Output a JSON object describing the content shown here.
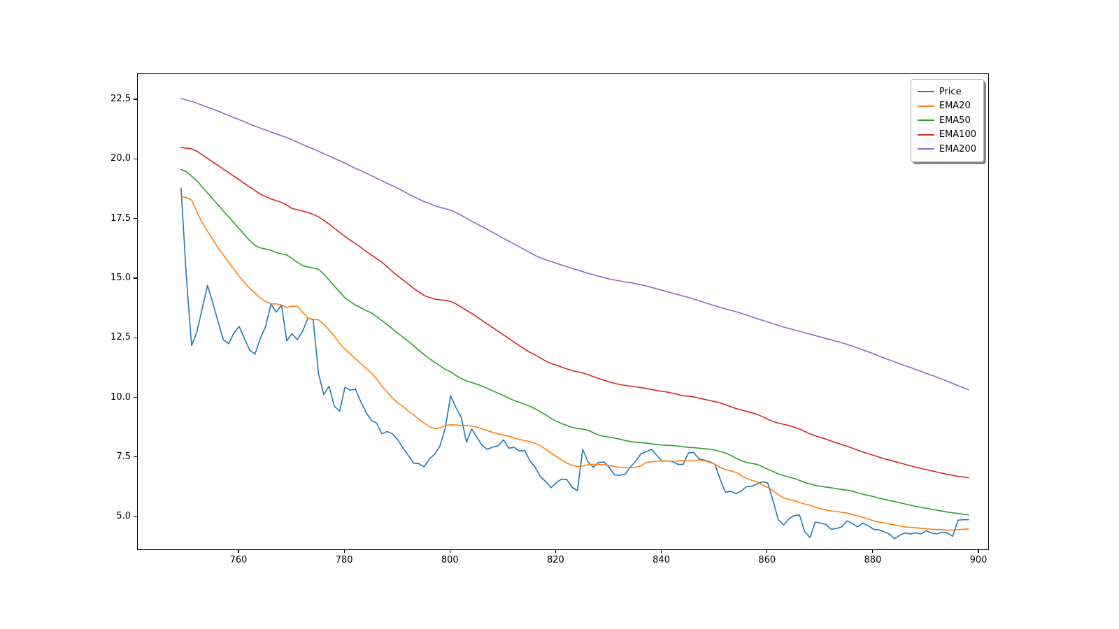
{
  "figure": {
    "background": "#ffffff"
  },
  "chart_data": {
    "type": "line",
    "title": "",
    "xlabel": "",
    "ylabel": "",
    "grid": false,
    "legend_position": "upper right",
    "x_range": [
      740.81,
      901.72
    ],
    "y_range": [
      3.658,
      23.584
    ],
    "x_ticks": [
      {
        "value": 760,
        "label": "760"
      },
      {
        "value": 780,
        "label": "780"
      },
      {
        "value": 800,
        "label": "800"
      },
      {
        "value": 820,
        "label": "820"
      },
      {
        "value": 840,
        "label": "840"
      },
      {
        "value": 860,
        "label": "860"
      },
      {
        "value": 880,
        "label": "880"
      },
      {
        "value": 900,
        "label": "900"
      }
    ],
    "y_ticks": [
      {
        "value": 5.0,
        "label": "5.0"
      },
      {
        "value": 7.5,
        "label": "7.5"
      },
      {
        "value": 10.0,
        "label": "10.0"
      },
      {
        "value": 12.5,
        "label": "12.5"
      },
      {
        "value": 15.0,
        "label": "15.0"
      },
      {
        "value": 17.5,
        "label": "17.5"
      },
      {
        "value": 20.0,
        "label": "20.0"
      },
      {
        "value": 22.5,
        "label": "22.5"
      }
    ],
    "x": [
      749,
      750,
      751,
      752,
      753,
      754,
      755,
      756,
      757,
      758,
      759,
      760,
      761,
      762,
      763,
      764,
      765,
      766,
      767,
      768,
      769,
      770,
      771,
      772,
      773,
      774,
      775,
      776,
      777,
      778,
      779,
      780,
      781,
      782,
      783,
      784,
      785,
      786,
      787,
      788,
      789,
      790,
      791,
      792,
      793,
      794,
      795,
      796,
      797,
      798,
      799,
      800,
      801,
      802,
      803,
      804,
      805,
      806,
      807,
      808,
      809,
      810,
      811,
      812,
      813,
      814,
      815,
      816,
      817,
      818,
      819,
      820,
      821,
      822,
      823,
      824,
      825,
      826,
      827,
      828,
      829,
      830,
      831,
      832,
      833,
      834,
      835,
      836,
      837,
      838,
      839,
      840,
      841,
      842,
      843,
      844,
      845,
      846,
      847,
      848,
      849,
      850,
      851,
      852,
      853,
      854,
      855,
      856,
      857,
      858,
      859,
      860,
      861,
      862,
      863,
      864,
      865,
      866,
      867,
      868,
      869,
      870,
      871,
      872,
      873,
      874,
      875,
      876,
      877,
      878,
      879,
      880,
      881,
      882,
      883,
      884,
      885,
      886,
      887,
      888,
      889,
      890,
      891,
      892,
      893,
      894,
      895,
      896,
      897,
      898
    ],
    "series": [
      {
        "name": "Price",
        "color": "#1f77b4",
        "values": [
          18.8,
          15.1,
          12.2,
          12.78,
          13.75,
          14.72,
          14.0,
          13.2,
          12.45,
          12.28,
          12.73,
          13.0,
          12.5,
          12.0,
          11.85,
          12.5,
          13.0,
          13.95,
          13.6,
          13.9,
          12.4,
          12.7,
          12.45,
          12.8,
          13.35,
          13.28,
          11.03,
          10.15,
          10.49,
          9.66,
          9.45,
          10.45,
          10.33,
          10.37,
          9.85,
          9.4,
          9.07,
          8.95,
          8.5,
          8.6,
          8.5,
          8.25,
          7.9,
          7.6,
          7.27,
          7.25,
          7.12,
          7.45,
          7.65,
          8.0,
          8.75,
          10.1,
          9.6,
          9.2,
          8.15,
          8.7,
          8.35,
          8.0,
          7.85,
          7.95,
          8.0,
          8.25,
          7.9,
          7.93,
          7.78,
          7.8,
          7.37,
          7.1,
          6.7,
          6.5,
          6.24,
          6.45,
          6.6,
          6.58,
          6.25,
          6.12,
          7.85,
          7.32,
          7.1,
          7.3,
          7.32,
          7.1,
          6.78,
          6.76,
          6.8,
          7.1,
          7.35,
          7.66,
          7.75,
          7.85,
          7.6,
          7.35,
          7.37,
          7.33,
          7.22,
          7.22,
          7.7,
          7.72,
          7.45,
          7.4,
          7.33,
          7.22,
          6.6,
          6.05,
          6.1,
          6.0,
          6.1,
          6.29,
          6.3,
          6.4,
          6.49,
          6.44,
          5.7,
          4.9,
          4.68,
          4.93,
          5.07,
          5.1,
          4.4,
          4.15,
          4.8,
          4.75,
          4.7,
          4.5,
          4.53,
          4.6,
          4.85,
          4.75,
          4.6,
          4.75,
          4.65,
          4.5,
          4.48,
          4.4,
          4.3,
          4.1,
          4.25,
          4.35,
          4.3,
          4.35,
          4.3,
          4.44,
          4.34,
          4.3,
          4.38,
          4.34,
          4.2,
          4.88,
          4.9,
          4.9
        ]
      },
      {
        "name": "EMA20",
        "color": "#ff7f0e",
        "values": [
          18.45,
          18.4,
          18.3,
          17.8,
          17.35,
          17.0,
          16.65,
          16.3,
          16.0,
          15.7,
          15.4,
          15.1,
          14.85,
          14.6,
          14.4,
          14.2,
          14.05,
          13.95,
          13.95,
          13.9,
          13.8,
          13.85,
          13.85,
          13.6,
          13.35,
          13.3,
          13.28,
          13.1,
          12.85,
          12.6,
          12.3,
          12.05,
          11.85,
          11.65,
          11.45,
          11.25,
          11.05,
          10.8,
          10.5,
          10.25,
          10.0,
          9.8,
          9.65,
          9.45,
          9.3,
          9.1,
          8.95,
          8.8,
          8.72,
          8.75,
          8.85,
          8.88,
          8.87,
          8.85,
          8.84,
          8.83,
          8.78,
          8.7,
          8.63,
          8.56,
          8.5,
          8.45,
          8.4,
          8.33,
          8.27,
          8.22,
          8.17,
          8.1,
          8.0,
          7.85,
          7.7,
          7.55,
          7.4,
          7.28,
          7.18,
          7.13,
          7.15,
          7.2,
          7.22,
          7.22,
          7.2,
          7.17,
          7.13,
          7.09,
          7.08,
          7.09,
          7.1,
          7.15,
          7.3,
          7.33,
          7.35,
          7.37,
          7.36,
          7.35,
          7.36,
          7.37,
          7.37,
          7.38,
          7.4,
          7.38,
          7.3,
          7.22,
          7.1,
          7.0,
          6.95,
          6.88,
          6.75,
          6.63,
          6.55,
          6.49,
          6.35,
          6.25,
          6.12,
          5.95,
          5.82,
          5.75,
          5.7,
          5.62,
          5.56,
          5.5,
          5.42,
          5.36,
          5.31,
          5.27,
          5.24,
          5.21,
          5.18,
          5.12,
          5.06,
          5.0,
          4.93,
          4.85,
          4.8,
          4.76,
          4.72,
          4.68,
          4.64,
          4.6,
          4.58,
          4.56,
          4.54,
          4.52,
          4.5,
          4.49,
          4.48,
          4.47,
          4.47,
          4.48,
          4.5,
          4.52
        ]
      },
      {
        "name": "EMA50",
        "color": "#2ca02c",
        "values": [
          19.58,
          19.5,
          19.3,
          19.1,
          18.85,
          18.6,
          18.35,
          18.1,
          17.85,
          17.6,
          17.35,
          17.1,
          16.85,
          16.6,
          16.4,
          16.3,
          16.25,
          16.2,
          16.1,
          16.05,
          16.0,
          15.85,
          15.7,
          15.55,
          15.5,
          15.45,
          15.4,
          15.2,
          14.95,
          14.7,
          14.45,
          14.2,
          14.05,
          13.9,
          13.78,
          13.67,
          13.57,
          13.42,
          13.25,
          13.08,
          12.9,
          12.72,
          12.55,
          12.38,
          12.2,
          12.0,
          11.82,
          11.65,
          11.5,
          11.35,
          11.2,
          11.1,
          10.95,
          10.82,
          10.72,
          10.65,
          10.58,
          10.5,
          10.4,
          10.3,
          10.2,
          10.1,
          10.0,
          9.9,
          9.82,
          9.74,
          9.66,
          9.55,
          9.42,
          9.3,
          9.15,
          9.03,
          8.93,
          8.85,
          8.77,
          8.73,
          8.7,
          8.65,
          8.55,
          8.45,
          8.4,
          8.36,
          8.32,
          8.28,
          8.22,
          8.18,
          8.15,
          8.13,
          8.11,
          8.08,
          8.05,
          8.03,
          8.02,
          8.01,
          7.99,
          7.96,
          7.93,
          7.92,
          7.9,
          7.88,
          7.85,
          7.82,
          7.76,
          7.7,
          7.6,
          7.48,
          7.38,
          7.3,
          7.26,
          7.22,
          7.12,
          7.02,
          6.92,
          6.82,
          6.75,
          6.69,
          6.63,
          6.55,
          6.46,
          6.4,
          6.34,
          6.3,
          6.27,
          6.24,
          6.2,
          6.17,
          6.14,
          6.1,
          6.03,
          5.97,
          5.92,
          5.87,
          5.81,
          5.76,
          5.71,
          5.66,
          5.61,
          5.56,
          5.51,
          5.46,
          5.42,
          5.38,
          5.34,
          5.3,
          5.26,
          5.22,
          5.19,
          5.16,
          5.13,
          5.1
        ]
      },
      {
        "name": "EMA100",
        "color": "#d62728",
        "values": [
          20.5,
          20.48,
          20.45,
          20.35,
          20.2,
          20.05,
          19.9,
          19.75,
          19.6,
          19.45,
          19.3,
          19.15,
          19.0,
          18.85,
          18.7,
          18.55,
          18.45,
          18.35,
          18.28,
          18.2,
          18.1,
          17.95,
          17.9,
          17.85,
          17.78,
          17.7,
          17.6,
          17.45,
          17.3,
          17.12,
          16.95,
          16.78,
          16.62,
          16.48,
          16.32,
          16.15,
          16.0,
          15.85,
          15.7,
          15.5,
          15.3,
          15.12,
          14.95,
          14.78,
          14.6,
          14.45,
          14.3,
          14.22,
          14.15,
          14.12,
          14.1,
          14.05,
          13.95,
          13.82,
          13.68,
          13.55,
          13.4,
          13.25,
          13.1,
          12.95,
          12.8,
          12.65,
          12.5,
          12.35,
          12.2,
          12.05,
          11.92,
          11.8,
          11.68,
          11.55,
          11.45,
          11.38,
          11.3,
          11.22,
          11.15,
          11.1,
          11.05,
          10.98,
          10.9,
          10.82,
          10.75,
          10.68,
          10.62,
          10.57,
          10.53,
          10.5,
          10.47,
          10.44,
          10.4,
          10.36,
          10.32,
          10.28,
          10.25,
          10.2,
          10.15,
          10.1,
          10.08,
          10.05,
          10.0,
          9.95,
          9.9,
          9.85,
          9.8,
          9.72,
          9.64,
          9.56,
          9.5,
          9.44,
          9.38,
          9.32,
          9.22,
          9.12,
          9.02,
          8.95,
          8.9,
          8.85,
          8.78,
          8.7,
          8.6,
          8.5,
          8.42,
          8.35,
          8.28,
          8.2,
          8.12,
          8.05,
          7.98,
          7.9,
          7.82,
          7.74,
          7.67,
          7.6,
          7.53,
          7.46,
          7.4,
          7.34,
          7.28,
          7.22,
          7.16,
          7.1,
          7.05,
          7.0,
          6.95,
          6.9,
          6.85,
          6.8,
          6.76,
          6.72,
          6.69,
          6.66
        ]
      },
      {
        "name": "EMA200",
        "color": "#9467bd",
        "values": [
          22.56,
          22.5,
          22.44,
          22.36,
          22.28,
          22.2,
          22.12,
          22.03,
          21.94,
          21.85,
          21.76,
          21.67,
          21.58,
          21.49,
          21.4,
          21.32,
          21.24,
          21.16,
          21.08,
          21.0,
          20.92,
          20.83,
          20.73,
          20.63,
          20.54,
          20.45,
          20.35,
          20.25,
          20.15,
          20.05,
          19.95,
          19.85,
          19.74,
          19.63,
          19.53,
          19.43,
          19.33,
          19.22,
          19.11,
          19.0,
          18.9,
          18.8,
          18.68,
          18.56,
          18.45,
          18.34,
          18.24,
          18.15,
          18.07,
          18.0,
          17.94,
          17.88,
          17.78,
          17.66,
          17.54,
          17.42,
          17.3,
          17.18,
          17.06,
          16.94,
          16.82,
          16.7,
          16.58,
          16.46,
          16.34,
          16.22,
          16.1,
          15.98,
          15.88,
          15.8,
          15.73,
          15.65,
          15.58,
          15.51,
          15.44,
          15.37,
          15.3,
          15.23,
          15.17,
          15.11,
          15.05,
          14.99,
          14.95,
          14.91,
          14.87,
          14.84,
          14.8,
          14.75,
          14.7,
          14.64,
          14.58,
          14.52,
          14.46,
          14.4,
          14.34,
          14.28,
          14.22,
          14.15,
          14.08,
          14.01,
          13.94,
          13.87,
          13.8,
          13.74,
          13.68,
          13.62,
          13.55,
          13.48,
          13.4,
          13.33,
          13.26,
          13.19,
          13.12,
          13.05,
          12.98,
          12.92,
          12.86,
          12.8,
          12.74,
          12.68,
          12.62,
          12.56,
          12.5,
          12.44,
          12.38,
          12.32,
          12.25,
          12.18,
          12.1,
          12.02,
          11.94,
          11.86,
          11.77,
          11.68,
          11.6,
          11.52,
          11.44,
          11.36,
          11.28,
          11.2,
          11.12,
          11.04,
          10.96,
          10.88,
          10.79,
          10.7,
          10.61,
          10.52,
          10.44,
          10.35
        ]
      }
    ]
  }
}
